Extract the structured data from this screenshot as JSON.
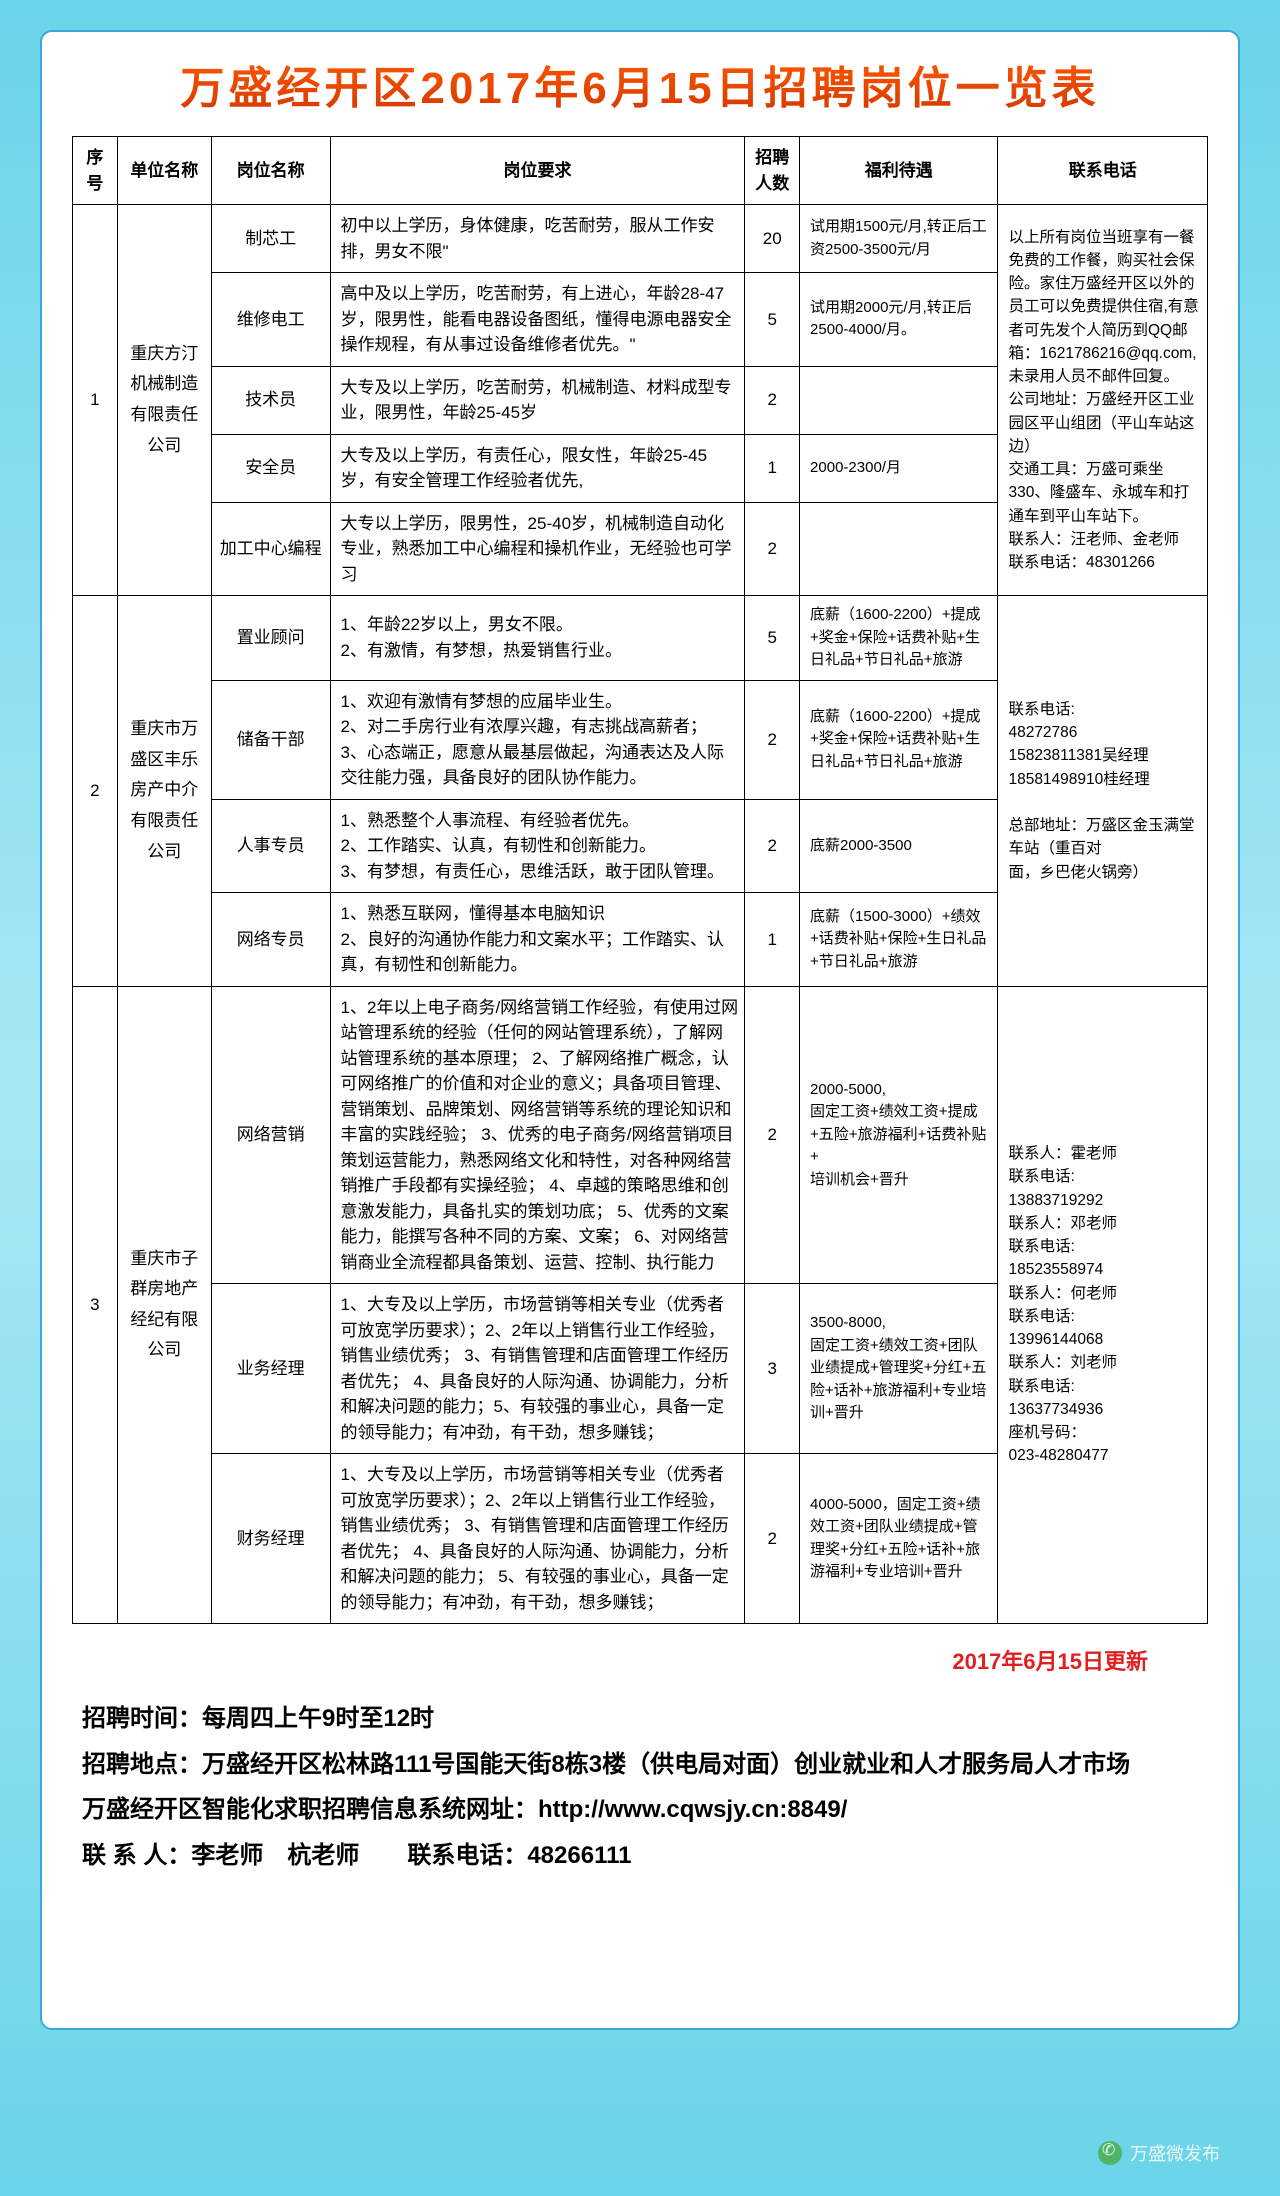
{
  "title": "万盛经开区2017年6月15日招聘岗位一览表",
  "headers": {
    "seq": "序号",
    "company": "单位名称",
    "position": "岗位名称",
    "requirements": "岗位要求",
    "num": "招聘人数",
    "benefits": "福利待遇",
    "contact": "联系电话"
  },
  "groups": [
    {
      "seq": "1",
      "company": "重庆方汀机械制造有限责任公司",
      "contact": "以上所有岗位当班享有一餐免费的工作餐，购买社会保险。家住万盛经开区以外的员工可以免费提供住宿,有意者可先发个人简历到QQ邮箱：1621786216@qq.com,未录用人员不邮件回复。\n公司地址：万盛经开区工业园区平山组团（平山车站这边）\n交通工具：万盛可乘坐330、隆盛车、永城车和打通车到平山车站下。\n联系人：汪老师、金老师　　联系电话：48301266",
      "rows": [
        {
          "position": "制芯工",
          "req": "初中以上学历，身体健康，吃苦耐劳，服从工作安排，男女不限\"",
          "num": "20",
          "benefits": "试用期1500元/月,转正后工资2500-3500元/月"
        },
        {
          "position": "维修电工",
          "req": "高中及以上学历，吃苦耐劳，有上进心，年龄28-47岁，限男性，能看电器设备图纸，懂得电源电器安全操作规程，有从事过设备维修者优先。\"",
          "num": "5",
          "benefits": "试用期2000元/月,转正后2500-4000/月。"
        },
        {
          "position": "技术员",
          "req": "大专及以上学历，吃苦耐劳，机械制造、材料成型专业，限男性，年龄25-45岁",
          "num": "2",
          "benefits": ""
        },
        {
          "position": "安全员",
          "req": "大专及以上学历，有责任心，限女性，年龄25-45岁，有安全管理工作经验者优先,",
          "num": "1",
          "benefits": "2000-2300/月"
        },
        {
          "position": "加工中心编程",
          "req": "大专以上学历，限男性，25-40岁，机械制造自动化专业，熟悉加工中心编程和操机作业，无经验也可学习",
          "num": "2",
          "benefits": ""
        }
      ]
    },
    {
      "seq": "2",
      "company": "重庆市万盛区丰乐房产中介有限责任公司",
      "contact": "联系电话:\n48272786\n15823811381吴经理\n18581498910桂经理\n\n总部地址：万盛区金玉满堂车站（重百对\n面，乡巴佬火锅旁）",
      "rows": [
        {
          "position": "置业顾问",
          "req": "1、年龄22岁以上，男女不限。\n2、有激情，有梦想，热爱销售行业。",
          "num": "5",
          "benefits": "底薪（1600-2200）+提成+奖金+保险+话费补贴+生日礼品+节日礼品+旅游"
        },
        {
          "position": "储备干部",
          "req": "1、欢迎有激情有梦想的应届毕业生。\n2、对二手房行业有浓厚兴趣，有志挑战高薪者；\n3、心态端正，愿意从最基层做起，沟通表达及人际交往能力强，具备良好的团队协作能力。",
          "num": "2",
          "benefits": "底薪（1600-2200）+提成+奖金+保险+话费补贴+生日礼品+节日礼品+旅游"
        },
        {
          "position": "人事专员",
          "req": "1、熟悉整个人事流程、有经验者优先。\n2、工作踏实、认真，有韧性和创新能力。\n3、有梦想，有责任心，思维活跃，敢于团队管理。",
          "num": "2",
          "benefits": "底薪2000-3500"
        },
        {
          "position": "网络专员",
          "req": "1、熟悉互联网，懂得基本电脑知识\n2、良好的沟通协作能力和文案水平；工作踏实、认真，有韧性和创新能力。",
          "num": "1",
          "benefits": "底薪（1500-3000）+绩效+话费补贴+保险+生日礼品+节日礼品+旅游"
        }
      ]
    },
    {
      "seq": "3",
      "company": "重庆市子群房地产经纪有限公司",
      "contact": "联系人：霍老师\n联系电话:\n13883719292\n联系人：邓老师\n联系电话:\n18523558974\n联系人：何老师\n联系电话:\n13996144068\n联系人：刘老师\n联系电话:\n13637734936\n座机号码：\n023-48280477",
      "rows": [
        {
          "position": "网络营销",
          "req": "1、2年以上电子商务/网络营销工作经验，有使用过网站管理系统的经验（任何的网站管理系统），了解网站管理系统的基本原理； 2、了解网络推广概念，认可网络推广的价值和对企业的意义；具备项目管理、营销策划、品牌策划、网络营销等系统的理论知识和丰富的实践经验； 3、优秀的电子商务/网络营销项目策划运营能力，熟悉网络文化和特性，对各种网络营销推广手段都有实操经验； 4、卓越的策略思维和创意激发能力，具备扎实的策划功底； 5、优秀的文案能力，能撰写各种不同的方案、文案； 6、对网络营销商业全流程都具备策划、运营、控制、执行能力",
          "num": "2",
          "benefits": "2000-5000,\n固定工资+绩效工资+提成+五险+旅游福利+话费补贴+\n培训机会+晋升"
        },
        {
          "position": "业务经理",
          "req": "1、大专及以上学历，市场营销等相关专业（优秀者可放宽学历要求）；2、2年以上销售行业工作经验，销售业绩优秀； 3、有销售管理和店面管理工作经历者优先； 4、具备良好的人际沟通、协调能力，分析和解决问题的能力；5、有较强的事业心，具备一定的领导能力；有冲劲，有干劲，想多赚钱；",
          "num": "3",
          "benefits": "3500-8000,\n固定工资+绩效工资+团队业绩提成+管理奖+分红+五险+话补+旅游福利+专业培训+晋升"
        },
        {
          "position": "财务经理",
          "req": "1、大专及以上学历，市场营销等相关专业（优秀者可放宽学历要求）；2、2年以上销售行业工作经验，销售业绩优秀； 3、有销售管理和店面管理工作经历者优先； 4、具备良好的人际沟通、协调能力，分析和解决问题的能力； 5、有较强的事业心，具备一定的领导能力；有冲劲，有干劲，想多赚钱；",
          "num": "2",
          "benefits": "4000-5000，固定工资+绩效工资+团队业绩提成+管理奖+分红+五险+话补+旅游福利+专业培训+晋升"
        }
      ]
    }
  ],
  "update_note": "2017年6月15日更新",
  "footer": {
    "line1": "招聘时间：每周四上午9时至12时",
    "line2": "招聘地点：万盛经开区松林路111号国能天街8栋3楼（供电局对面）创业就业和人才服务局人才市场",
    "line3": "万盛经开区智能化求职招聘信息系统网址：http://www.cqwsjy.cn:8849/",
    "line4": "联 系 人：李老师　杭老师　　联系电话：48266111"
  },
  "wechat_label": "万盛微发布"
}
